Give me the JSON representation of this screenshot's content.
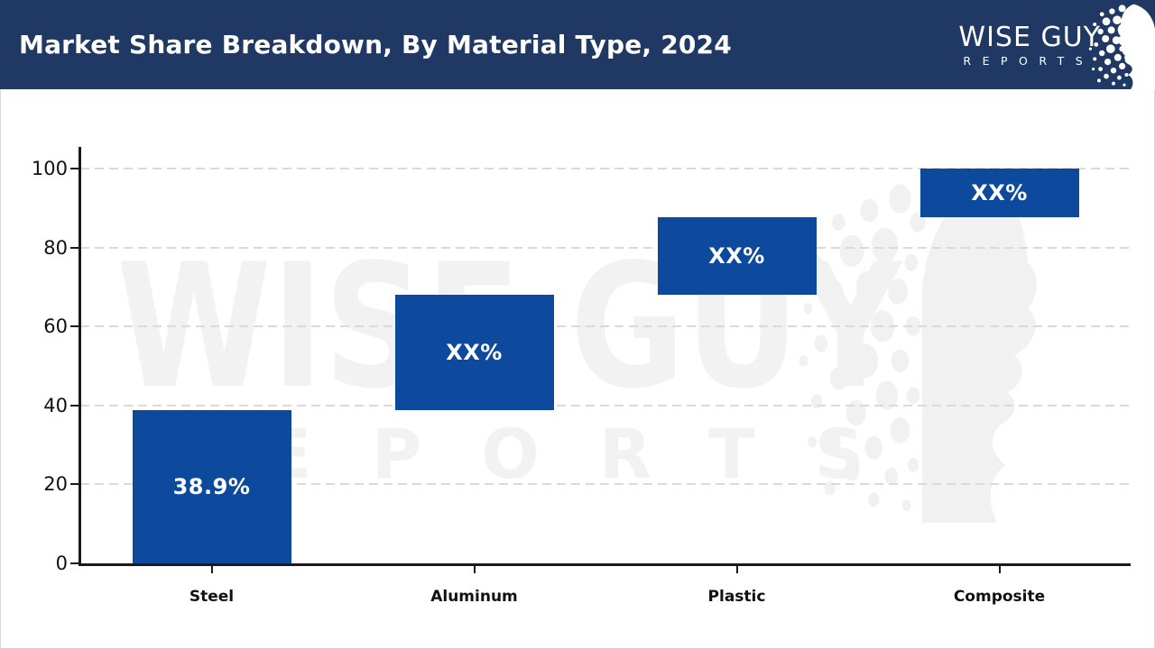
{
  "header": {
    "title": "Market Share Breakdown, By Material Type, 2024",
    "bg_color": "#1f3864",
    "logo": {
      "line1": "WISE GUY",
      "line2": "REPORTS"
    }
  },
  "watermark": {
    "line1": "WISE GUY",
    "line2": "REPORTS"
  },
  "chart_data": {
    "type": "bar",
    "subtype": "waterfall",
    "title": "Market Share Breakdown, By Material Type, 2024",
    "categories": [
      "Steel",
      "Aluminum",
      "Plastic",
      "Composite"
    ],
    "series": [
      {
        "name": "Market share (%)",
        "segments": [
          {
            "category": "Steel",
            "start": 0,
            "end": 38.9,
            "label": "38.9%"
          },
          {
            "category": "Aluminum",
            "start": 38.9,
            "end": 68.0,
            "label": "XX%"
          },
          {
            "category": "Plastic",
            "start": 68.0,
            "end": 87.7,
            "label": "XX%"
          },
          {
            "category": "Composite",
            "start": 87.7,
            "end": 100.0,
            "label": "XX%"
          }
        ]
      }
    ],
    "y_ticks": [
      "0",
      "20",
      "40",
      "60",
      "80",
      "100"
    ],
    "ylim": [
      0,
      105.5
    ],
    "xlabel": "",
    "ylabel": "",
    "grid": "horizontal-dashed",
    "legend": "none",
    "bar_color": "#0d4a9e",
    "bar_label_color": "#ffffff"
  }
}
